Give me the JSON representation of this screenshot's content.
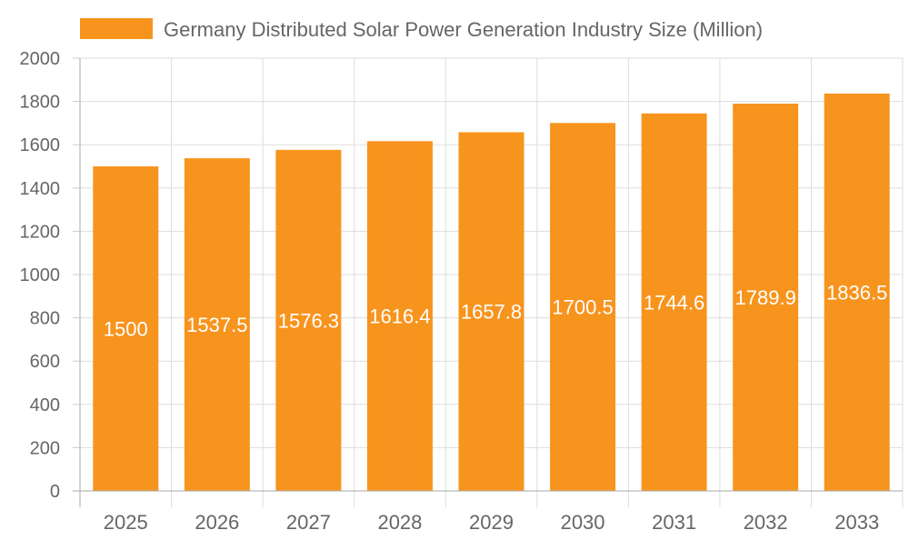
{
  "chart_data": {
    "type": "bar",
    "title": "",
    "xlabel": "",
    "ylabel": "",
    "legend": {
      "position": "top",
      "entries": [
        "Germany Distributed Solar Power Generation Industry Size (Million)"
      ]
    },
    "categories": [
      "2025",
      "2026",
      "2027",
      "2028",
      "2029",
      "2030",
      "2031",
      "2032",
      "2033"
    ],
    "series": [
      {
        "name": "Germany Distributed Solar Power Generation Industry Size (Million)",
        "values": [
          1500,
          1537.5,
          1576.3,
          1616.4,
          1657.8,
          1700.5,
          1744.6,
          1789.9,
          1836.5
        ],
        "color": "#F7941E"
      }
    ],
    "ylim": [
      0,
      2000
    ],
    "yticks": [
      0,
      200,
      400,
      600,
      800,
      1000,
      1200,
      1400,
      1600,
      1800,
      2000
    ],
    "grid": true,
    "data_labels": true
  }
}
